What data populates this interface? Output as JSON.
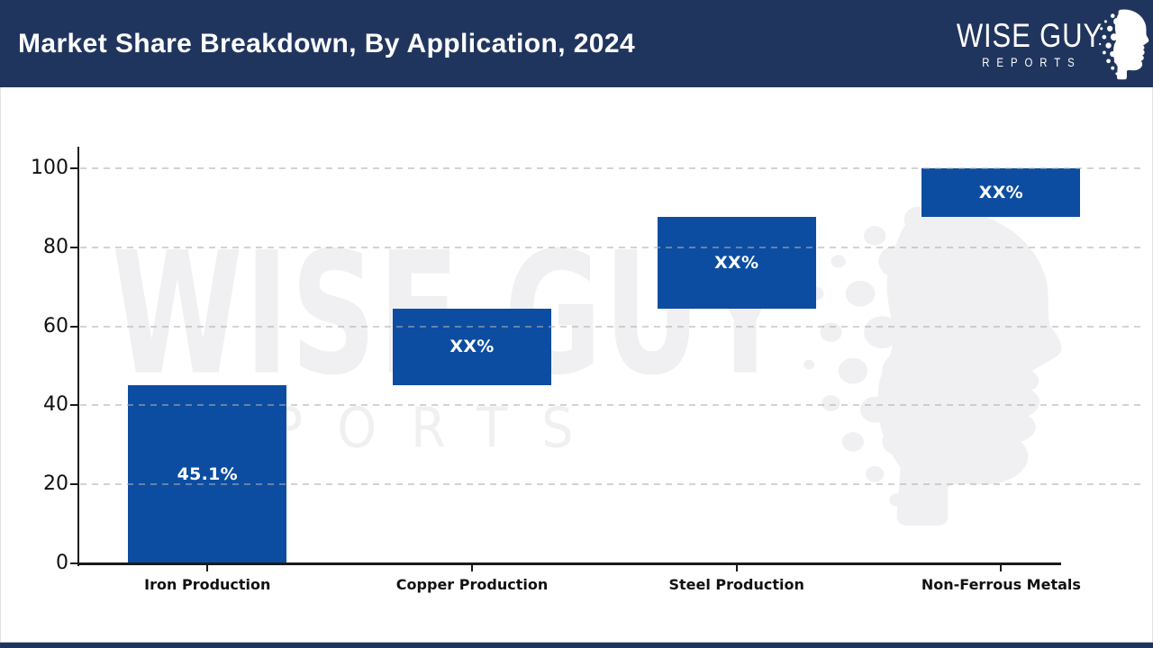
{
  "header": {
    "title": "Market Share Breakdown, By Application, 2024",
    "logo": {
      "name_line": "WISE GUY",
      "sub_line": "REPORTS"
    }
  },
  "watermark": {
    "name_line": "WISE GUY",
    "sub_line": "REPORTS"
  },
  "colors": {
    "header_bg": "#20355E",
    "footer_bg": "#20355E",
    "bar_fill": "#0C4DA1",
    "bar_label": "#FFFFFF",
    "axis": "#1A1A1A",
    "tick_label": "#111111",
    "gridline": "#D3D3D3",
    "watermark": "#F0F0F2"
  },
  "chart_data": {
    "type": "bar",
    "variant": "floating-segment-stacked (waterfall-style market share)",
    "title": "Market Share Breakdown, By Application, 2024",
    "categories": [
      "Iron Production",
      "Copper Production",
      "Steel Production",
      "Non-Ferrous Metals"
    ],
    "series": [
      {
        "name": "Market share (%)",
        "segments": [
          {
            "category": "Iron Production",
            "start": 0,
            "end": 45.1,
            "label": "45.1%"
          },
          {
            "category": "Copper Production",
            "start": 45.1,
            "end": 64.5,
            "label": "XX%"
          },
          {
            "category": "Steel Production",
            "start": 64.5,
            "end": 87.8,
            "label": "XX%"
          },
          {
            "category": "Non-Ferrous Metals",
            "start": 87.8,
            "end": 100,
            "label": "XX%"
          }
        ]
      }
    ],
    "xlabel": "",
    "ylabel": "",
    "ylim": [
      0,
      100
    ],
    "yticks": [
      0,
      20,
      40,
      60,
      80,
      100
    ],
    "grid": "horizontal-dashed",
    "legend": "none"
  }
}
